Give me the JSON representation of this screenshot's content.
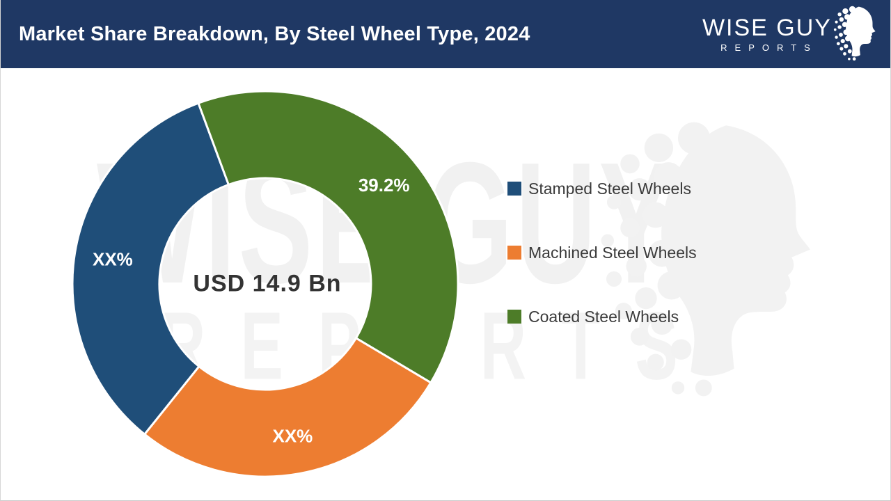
{
  "header": {
    "title": "Market Share Breakdown, By Steel Wheel Type, 2024",
    "bg_color": "#1f3864",
    "logo": {
      "line1": "WISE GUY",
      "line2": "REPORTS"
    }
  },
  "chart_data": {
    "type": "pie",
    "subtype": "donut",
    "title": "Market Share Breakdown, By Steel Wheel Type, 2024",
    "center_label": "USD 14.9 Bn",
    "start_angle_deg": 110.3,
    "clockwise": true,
    "legend_position": "right",
    "segments": [
      {
        "name": "Coated Steel Wheels",
        "value_pct": 39.2,
        "label": "39.2%",
        "color": "#4d7c28"
      },
      {
        "name": "Machined Steel Wheels",
        "value_pct": 27.2,
        "label": "XX%",
        "color": "#ed7d31"
      },
      {
        "name": "Stamped Steel Wheels",
        "value_pct": 33.6,
        "label": "XX%",
        "color": "#1f4e79"
      }
    ],
    "legend": [
      {
        "label": "Stamped Steel Wheels",
        "color": "#1f4e79"
      },
      {
        "label": "Machined Steel Wheels",
        "color": "#ed7d31"
      },
      {
        "label": "Coated Steel Wheels",
        "color": "#4d7c28"
      }
    ]
  },
  "watermark": {
    "line1": "WISE GUY",
    "line2": "REPORTS"
  }
}
